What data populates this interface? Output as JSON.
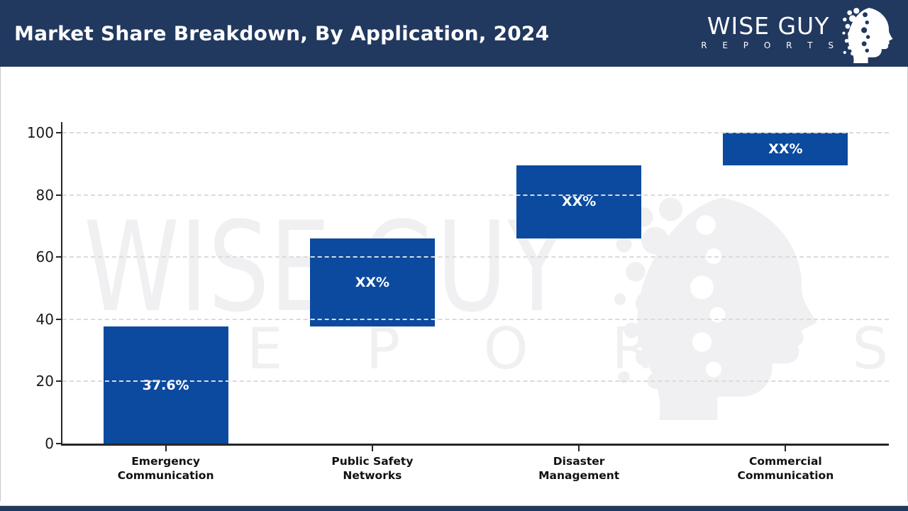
{
  "header": {
    "title": "Market Share Breakdown, By Application, 2024",
    "logo": {
      "wordmark": "WISE GUY",
      "reports": "R E P O R T S"
    }
  },
  "watermark": {
    "wordmark": "WISE GUY",
    "reports": "R E P O R T S"
  },
  "footer": {
    "visible": true
  },
  "colors": {
    "header_bg": "#21385F",
    "bar": "#0B4A9E",
    "grid": "#DBDBDB",
    "axis": "#262626",
    "tick_text": "#1A1A1A",
    "bar_label_text": "#FFFFFF",
    "watermark": "#F0F0F2"
  },
  "chart_data": {
    "type": "bar",
    "subtype": "waterfall",
    "title": "Market Share Breakdown, By Application, 2024",
    "xlabel": "",
    "ylabel": "",
    "ylim": [
      0,
      100
    ],
    "yticks": [
      0,
      20,
      40,
      60,
      80,
      100
    ],
    "grid": "horizontal-dashed",
    "legend": "none",
    "categories": [
      "Emergency Communication",
      "Public Safety Networks",
      "Disaster Management",
      "Commercial Communication"
    ],
    "category_label_lines": [
      [
        "Emergency",
        "Communication"
      ],
      [
        "Public Safety",
        "Networks"
      ],
      [
        "Disaster",
        "Management"
      ],
      [
        "Commercial",
        "Communication"
      ]
    ],
    "segments": [
      {
        "category": "Emergency Communication",
        "start": 0,
        "end": 37.6,
        "label": "37.6%",
        "value_shown": "37.6%"
      },
      {
        "category": "Public Safety Networks",
        "start": 37.6,
        "end": 66,
        "label": "XX%",
        "value_shown": "XX%"
      },
      {
        "category": "Disaster Management",
        "start": 66,
        "end": 89.5,
        "label": "XX%",
        "value_shown": "XX%"
      },
      {
        "category": "Commercial Communication",
        "start": 89.5,
        "end": 100,
        "label": "XX%",
        "value_shown": "XX%"
      }
    ]
  }
}
